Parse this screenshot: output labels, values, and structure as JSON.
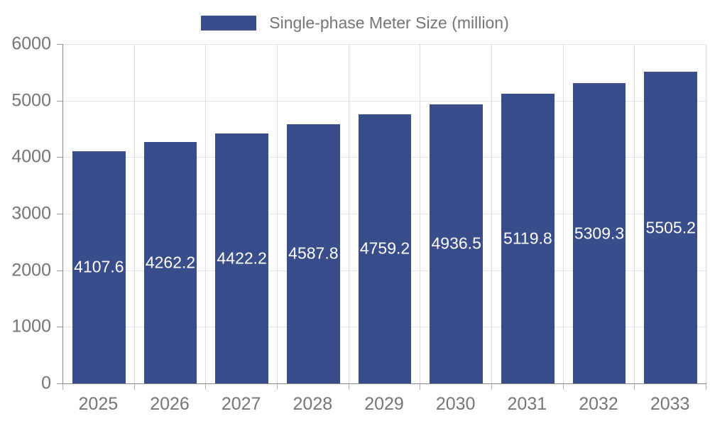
{
  "chart_data": {
    "type": "bar",
    "title": "",
    "xlabel": "",
    "ylabel": "",
    "legend_position": "top-center",
    "grid": true,
    "categories": [
      "2025",
      "2026",
      "2027",
      "2028",
      "2029",
      "2030",
      "2031",
      "2032",
      "2033"
    ],
    "series": [
      {
        "name": "Single-phase Meter Size (million)",
        "values": [
          4107.6,
          4262.2,
          4422.2,
          4587.8,
          4759.2,
          4936.5,
          5119.8,
          5309.3,
          5505.2
        ],
        "value_labels": [
          "4107.6",
          "4262.2",
          "4422.2",
          "4587.8",
          "4759.2",
          "4936.5",
          "5119.8",
          "5309.3",
          "5505.2"
        ]
      }
    ],
    "ylim": [
      0,
      6000
    ],
    "yticks": [
      0,
      1000,
      2000,
      3000,
      4000,
      5000,
      6000
    ],
    "ytick_labels": [
      "0",
      "1000",
      "2000",
      "3000",
      "4000",
      "5000",
      "6000"
    ]
  },
  "colors": {
    "bar": "#384d8a",
    "value_label_text": "#ffffff",
    "axis_line": "#898989",
    "gridline": "#e4e4e4",
    "axis_text": "#757575",
    "background": "#ffffff"
  },
  "legend": {
    "label": "Single-phase Meter Size (million)"
  }
}
